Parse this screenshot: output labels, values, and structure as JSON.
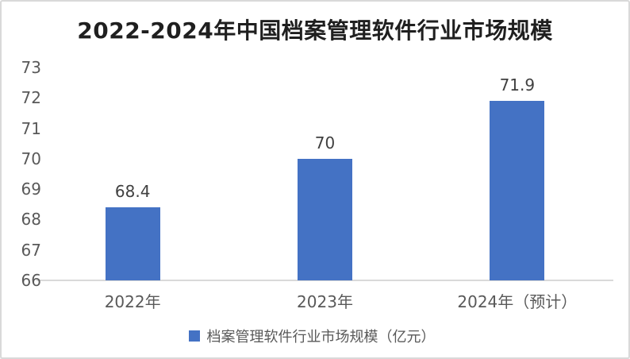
{
  "chart_data": {
    "type": "bar",
    "title": "2022-2024年中国档案管理软件行业市场规模",
    "categories": [
      "2022年",
      "2023年",
      "2024年（预计）"
    ],
    "values": [
      68.4,
      70,
      71.9
    ],
    "value_labels": [
      "68.4",
      "70",
      "71.9"
    ],
    "series_name": "档案管理软件行业市场规模（亿元）",
    "legend": {
      "position": "bottom",
      "label": "档案管理软件行业市场规模（亿元）"
    },
    "ylim": [
      66,
      73
    ],
    "yticks": [
      66,
      67,
      68,
      69,
      70,
      71,
      72,
      73
    ],
    "xlabel": "",
    "ylabel": "",
    "grid": false,
    "colors": {
      "bar": "#4472C4",
      "axis_line": "#D9D9D9",
      "tick_label": "#595959",
      "data_label": "#404040",
      "title": "#1F1F1F",
      "frame_border": "#D9D9D9"
    }
  }
}
